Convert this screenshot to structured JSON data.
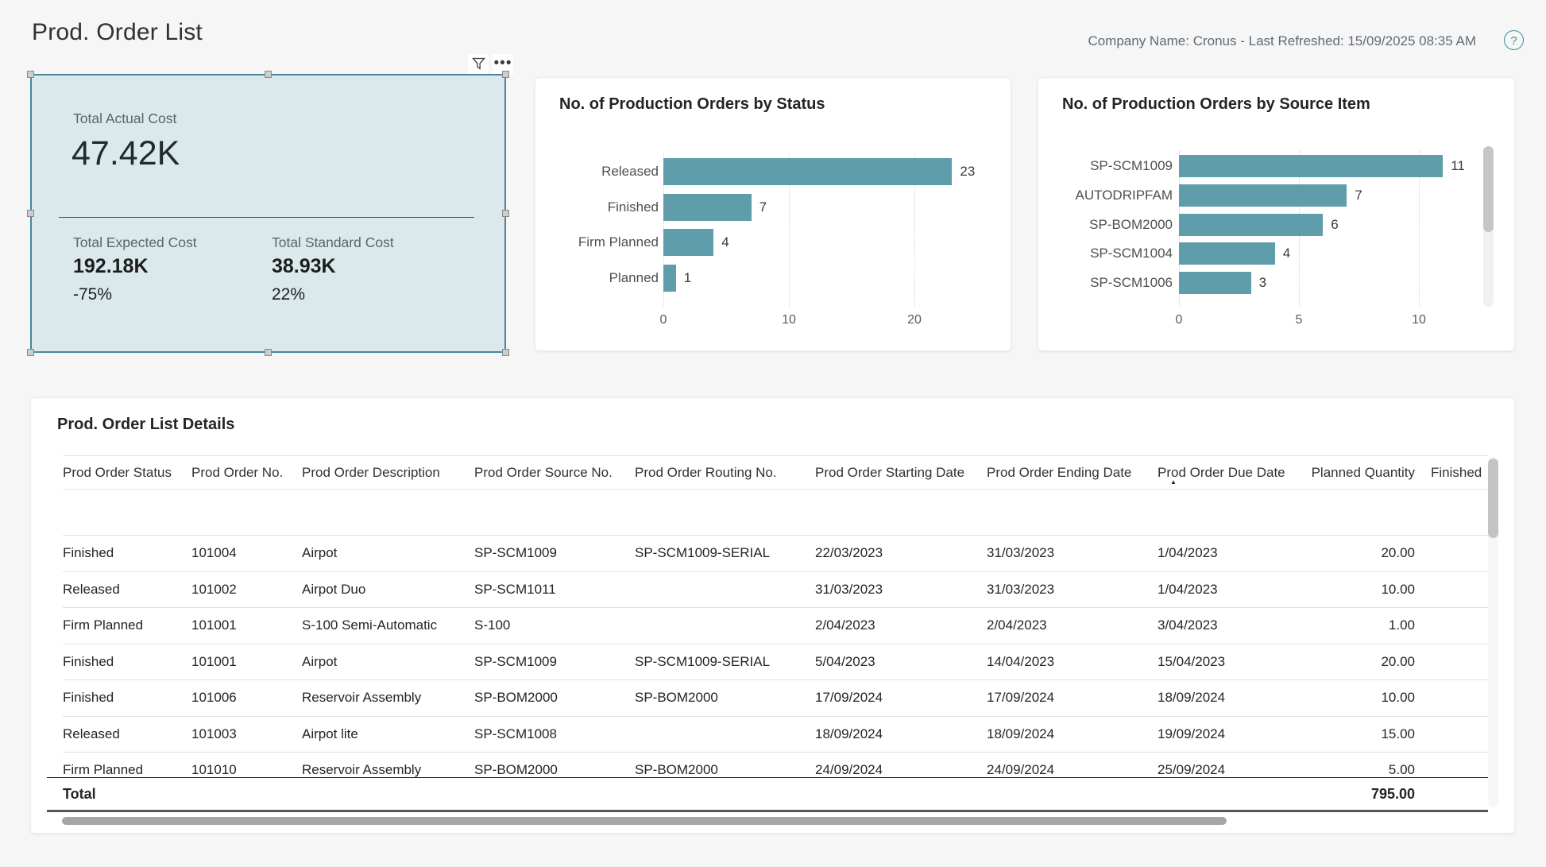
{
  "page": {
    "title": "Prod. Order List",
    "company_info": "Company Name: Cronus - Last Refreshed: 15/09/2025 08:35 AM",
    "help_icon": "?"
  },
  "toolbar": {
    "filter_icon": "filter-funnel",
    "more_options_icon": "more-options-ellipsis"
  },
  "kpi": {
    "title": "Total Actual Cost",
    "value": "47.42K",
    "sub_metrics": [
      {
        "label": "Total Expected Cost",
        "value": "192.18K",
        "delta": "-75%"
      },
      {
        "label": "Total Standard Cost",
        "value": "38.93K",
        "delta": "22%"
      }
    ],
    "background_color": "#dbe9ec",
    "border_color": "#44899a"
  },
  "chart_data": [
    {
      "type": "bar",
      "orientation": "horizontal",
      "title": "No. of Production Orders by Status",
      "categories": [
        "Released",
        "Finished",
        "Firm Planned",
        "Planned"
      ],
      "values": [
        23,
        7,
        4,
        1
      ],
      "data_labels": [
        "23",
        "7",
        "4",
        "1"
      ],
      "xticks": [
        0,
        10,
        20
      ],
      "xlim": [
        0,
        25
      ],
      "bar_color": "#5E9DA9",
      "grid": "dotted-vertical",
      "legend": "none"
    },
    {
      "type": "bar",
      "orientation": "horizontal",
      "title": "No. of Production Orders by Source Item",
      "categories": [
        "SP-SCM1009",
        "AUTODRIPFAM",
        "SP-BOM2000",
        "SP-SCM1004",
        "SP-SCM1006"
      ],
      "values": [
        11,
        7,
        6,
        4,
        3
      ],
      "data_labels": [
        "11",
        "7",
        "6",
        "4",
        "3"
      ],
      "xticks": [
        0,
        5,
        10
      ],
      "xlim": [
        0,
        12.5
      ],
      "bar_color": "#5E9DA9",
      "grid": "dotted-vertical",
      "legend": "none",
      "has_scrollbar": true
    }
  ],
  "table": {
    "title": "Prod. Order List Details",
    "columns": [
      "Prod Order Status",
      "Prod Order No.",
      "Prod Order Description",
      "Prod Order Source No.",
      "Prod Order Routing No.",
      "Prod Order Starting Date",
      "Prod Order Ending Date",
      "Prod Order Due Date",
      "Planned Quantity",
      "Finished"
    ],
    "numeric_columns": [
      8
    ],
    "sort_column": "Prod Order Due Date",
    "sort_direction": "asc",
    "rows": [
      [
        "Finished",
        "101004",
        "Airpot",
        "SP-SCM1009",
        "SP-SCM1009-SERIAL",
        "22/03/2023",
        "31/03/2023",
        "1/04/2023",
        "20.00",
        ""
      ],
      [
        "Released",
        "101002",
        "Airpot Duo",
        "SP-SCM1011",
        "",
        "31/03/2023",
        "31/03/2023",
        "1/04/2023",
        "10.00",
        ""
      ],
      [
        "Firm Planned",
        "101001",
        "S-100 Semi-Automatic",
        "S-100",
        "",
        "2/04/2023",
        "2/04/2023",
        "3/04/2023",
        "1.00",
        ""
      ],
      [
        "Finished",
        "101001",
        "Airpot",
        "SP-SCM1009",
        "SP-SCM1009-SERIAL",
        "5/04/2023",
        "14/04/2023",
        "15/04/2023",
        "20.00",
        ""
      ],
      [
        "Finished",
        "101006",
        "Reservoir Assembly",
        "SP-BOM2000",
        "SP-BOM2000",
        "17/09/2024",
        "17/09/2024",
        "18/09/2024",
        "10.00",
        ""
      ],
      [
        "Released",
        "101003",
        "Airpot lite",
        "SP-SCM1008",
        "",
        "18/09/2024",
        "18/09/2024",
        "19/09/2024",
        "15.00",
        ""
      ],
      [
        "Firm Planned",
        "101010",
        "Reservoir Assembly",
        "SP-BOM2000",
        "SP-BOM2000",
        "24/09/2024",
        "24/09/2024",
        "25/09/2024",
        "5.00",
        ""
      ]
    ],
    "total_label": "Total",
    "total_planned_quantity": "795.00"
  }
}
